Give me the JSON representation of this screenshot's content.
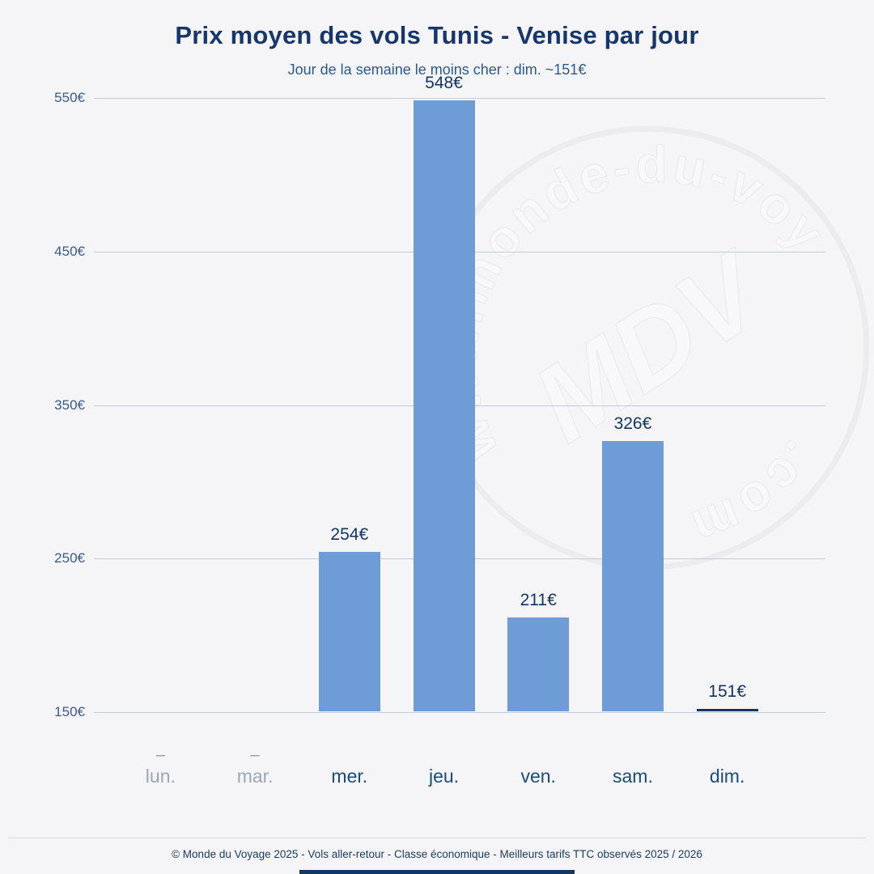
{
  "title": "Prix moyen des vols Tunis - Venise par jour",
  "subtitle": "Jour de la semaine le moins cher : dim. ~151€",
  "footer": "© Monde du Voyage 2025 - Vols aller-retour - Classe économique - Meilleurs tarifs TTC observés 2025 / 2026",
  "watermark": {
    "arc_top": "www.monde-du-voyage",
    "arc_bottom": ".com",
    "center": "MDV"
  },
  "chart_data": {
    "type": "bar",
    "title": "Prix moyen des vols Tunis - Venise par jour",
    "subtitle": "Jour de la semaine le moins cher : dim. ~151€",
    "categories": [
      "lun.",
      "mar.",
      "mer.",
      "jeu.",
      "ven.",
      "sam.",
      "dim."
    ],
    "values": [
      null,
      null,
      254,
      548,
      211,
      326,
      151
    ],
    "value_labels": [
      "",
      "",
      "254€",
      "548€",
      "211€",
      "326€",
      "151€"
    ],
    "missing_marker": "–",
    "xlabel": "",
    "ylabel": "",
    "ylim": [
      150,
      550
    ],
    "yticks": [
      150,
      250,
      350,
      450,
      550
    ],
    "ytick_labels": [
      "150€",
      "250€",
      "350€",
      "450€",
      "550€"
    ],
    "grid": true,
    "legend": "none",
    "bar_color": "#6d9cd6",
    "min_bar_color": "#14355f",
    "cheapest_day": "dim.",
    "cheapest_price": "151€"
  }
}
